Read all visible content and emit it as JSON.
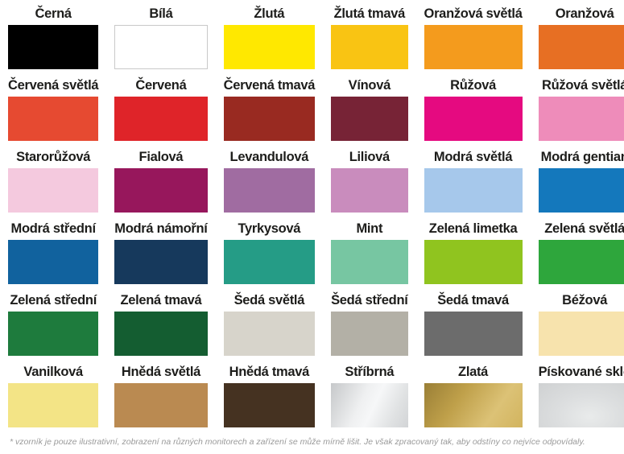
{
  "chart_data": {
    "type": "table",
    "title": "",
    "columns": [
      "label",
      "fill"
    ],
    "note": "color sample chart, 6 columns x 6 rows"
  },
  "palette": {
    "swatches": [
      {
        "label": "Černá",
        "fill": "#000000"
      },
      {
        "label": "Bílá",
        "fill": "#ffffff",
        "border": "#c9c9c9"
      },
      {
        "label": "Žlutá",
        "fill": "#ffe800"
      },
      {
        "label": "Žlutá tmavá",
        "fill": "#f9c413"
      },
      {
        "label": "Oranžová světlá",
        "fill": "#f49b1d"
      },
      {
        "label": "Oranžová",
        "fill": "#e76f23"
      },
      {
        "label": "Červená světlá",
        "fill": "#e64a31"
      },
      {
        "label": "Červená",
        "fill": "#df2429"
      },
      {
        "label": "Červená tmavá",
        "fill": "#992a21"
      },
      {
        "label": "Vínová",
        "fill": "#772336"
      },
      {
        "label": "Růžová",
        "fill": "#e50a80"
      },
      {
        "label": "Růžová světlá",
        "fill": "#ee8cba"
      },
      {
        "label": "Starorůžová",
        "fill": "#f4c9de"
      },
      {
        "label": "Fialová",
        "fill": "#97175c"
      },
      {
        "label": "Levandulová",
        "fill": "#a06ca1"
      },
      {
        "label": "Liliová",
        "fill": "#c98cbd"
      },
      {
        "label": "Modrá světlá",
        "fill": "#a6c8eb"
      },
      {
        "label": "Modrá gentian",
        "fill": "#1478bc"
      },
      {
        "label": "Modrá střední",
        "fill": "#11629e"
      },
      {
        "label": "Modrá námořní",
        "fill": "#16395c"
      },
      {
        "label": "Tyrkysová",
        "fill": "#259c86"
      },
      {
        "label": "Mint",
        "fill": "#77c6a2"
      },
      {
        "label": "Zelená limetka",
        "fill": "#90c41f"
      },
      {
        "label": "Zelená světlá",
        "fill": "#2ea63c"
      },
      {
        "label": "Zelená střední",
        "fill": "#1e7b3d"
      },
      {
        "label": "Zelená tmavá",
        "fill": "#145d31"
      },
      {
        "label": "Šedá světlá",
        "fill": "#d7d4cb"
      },
      {
        "label": "Šedá střední",
        "fill": "#b3b0a6"
      },
      {
        "label": "Šedá tmavá",
        "fill": "#6c6c6c"
      },
      {
        "label": "Béžová",
        "fill": "#f7e3ad"
      },
      {
        "label": "Vanilková",
        "fill": "#f3e486"
      },
      {
        "label": "Hnědá světlá",
        "fill": "#ba8a51"
      },
      {
        "label": "Hnědá tmavá",
        "fill": "#453221"
      },
      {
        "label": "Stříbrná",
        "fill": "linear-gradient(115deg, #c6c8ca 0%, #eff0f1 40%, #f6f7f8 55%, #e0e2e3 80%, #d2d4d6 100%)"
      },
      {
        "label": "Zlatá",
        "fill": "linear-gradient(125deg, #9a7f36 0%, #bfa04a 35%, #dcc276 70%, #d2b45e 100%)"
      },
      {
        "label": "Pískované sklo",
        "fill": "radial-gradient(ellipse at 55% 75%, #e9ebeb 0%, #dcdedf 45%, #cfd1d2 100%)"
      }
    ]
  },
  "footnote": {
    "text": "* vzorník je pouze ilustrativní, zobrazení na různých monitorech a zařízení se může mírně lišit. Je však zpracovaný tak, aby odstíny co nejvíce odpovídaly."
  }
}
